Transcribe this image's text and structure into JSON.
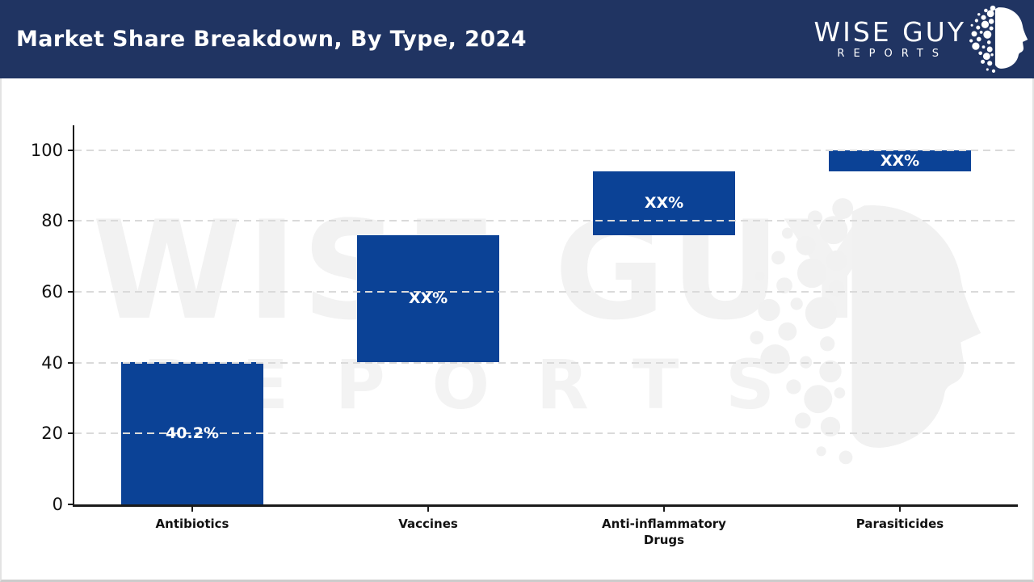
{
  "header": {
    "title": "Market Share Breakdown, By Type, 2024"
  },
  "logo": {
    "line1": "WISE GUY",
    "line2": "REPORTS"
  },
  "watermark": {
    "line1": "WISE GUY",
    "line2": "REPORTS"
  },
  "chart_data": {
    "type": "bar",
    "subtype": "waterfall-stacked-breakdown",
    "title": "Market Share Breakdown, By Type, 2024",
    "categories": [
      "Antibiotics",
      "Vaccines",
      "Anti-inflammatory Drugs",
      "Parasiticides"
    ],
    "segments": [
      {
        "category": "Antibiotics",
        "start": 0,
        "end": 40.2,
        "size_pct": 40.2,
        "label": "40.2%"
      },
      {
        "category": "Vaccines",
        "start": 40.2,
        "end": 76,
        "size_pct": 35.8,
        "label": "XX%"
      },
      {
        "category": "Anti-inflammatory Drugs",
        "start": 76,
        "end": 94,
        "size_pct": 18,
        "label": "XX%"
      },
      {
        "category": "Parasiticides",
        "start": 94,
        "end": 100,
        "size_pct": 6,
        "label": "XX%"
      }
    ],
    "yticks": [
      0,
      20,
      40,
      60,
      80,
      100
    ],
    "ylim": [
      0,
      107
    ],
    "xlabel": "",
    "ylabel": "",
    "grid": "horizontal-dashed",
    "grid_above_bars": true,
    "legend": "none",
    "bar_width_fraction": 0.6
  },
  "colors": {
    "header_bg": "#203462",
    "header_text": "#ffffff",
    "bar_fill": "#0b4296",
    "bar_label": "#ffffff",
    "gridline": "#dadada",
    "axis": "#1a1a1a",
    "watermark": "#f2f2f2"
  }
}
